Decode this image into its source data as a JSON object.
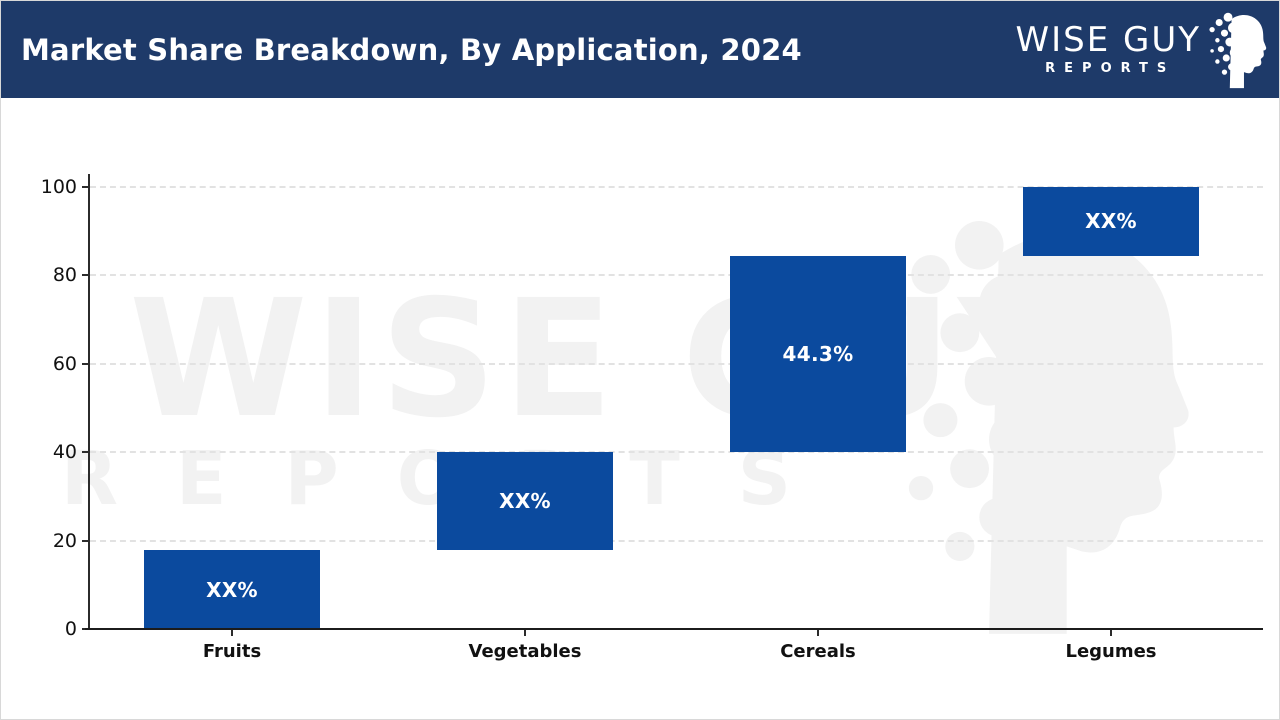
{
  "header": {
    "title": "Market Share Breakdown, By Application, 2024",
    "logo": {
      "name": "WISE GUY",
      "subtitle": "REPORTS",
      "face_icon": "dotted-profile-face"
    }
  },
  "watermark": {
    "wordmark": "WISE GUY",
    "subtitle": "REPORTS",
    "face_icon": "dotted-profile-face"
  },
  "chart_data": {
    "type": "bar",
    "variant": "waterfall",
    "title": "Market Share Breakdown, By Application, 2024",
    "categories": [
      "Fruits",
      "Vegetables",
      "Cereals",
      "Legumes"
    ],
    "segments": [
      {
        "category": "Fruits",
        "start": 0,
        "end": 17.8,
        "value": 17.8,
        "label": "XX%"
      },
      {
        "category": "Vegetables",
        "start": 17.8,
        "end": 40,
        "value": 22.2,
        "label": "XX%"
      },
      {
        "category": "Cereals",
        "start": 40,
        "end": 84.3,
        "value": 44.3,
        "label": "44.3%"
      },
      {
        "category": "Legumes",
        "start": 84.3,
        "end": 100,
        "value": 15.7,
        "label": "XX%"
      }
    ],
    "yticks": [
      0,
      20,
      40,
      60,
      80,
      100
    ],
    "ylim": [
      0,
      103
    ],
    "xlabel": "",
    "ylabel": "",
    "grid": "horizontal-dashed",
    "legend": "none"
  },
  "colors": {
    "header_bg": "#1e3a69",
    "bar_fill": "#0b4a9e",
    "bar_label": "#ffffff",
    "grid_line": "#e2e2e2",
    "axis_line": "#1c1c1c",
    "watermark": "#f2f2f2",
    "page_border": "#d8d8d8"
  }
}
